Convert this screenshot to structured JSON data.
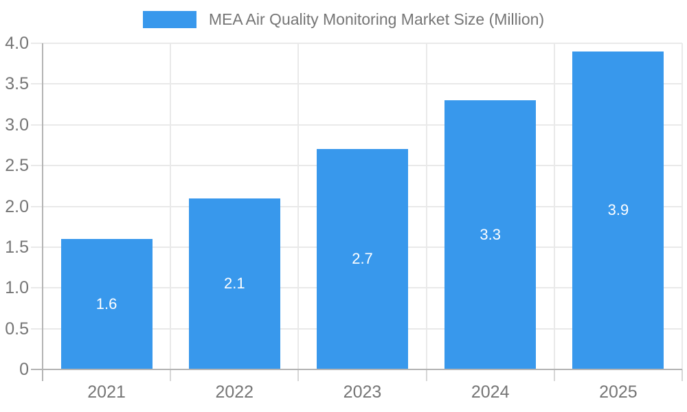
{
  "chart_data": {
    "type": "bar",
    "title": "MEA Air Quality Monitoring Market Size (Million)",
    "categories": [
      "2021",
      "2022",
      "2023",
      "2024",
      "2025"
    ],
    "values": [
      1.6,
      2.1,
      2.7,
      3.3,
      3.9
    ],
    "bar_labels": [
      "1.6",
      "2.1",
      "2.7",
      "3.3",
      "3.9"
    ],
    "xlabel": "",
    "ylabel": "",
    "ylim": [
      0,
      4.0
    ],
    "y_ticks": [
      "0",
      "0.5",
      "1.0",
      "1.5",
      "2.0",
      "2.5",
      "3.0",
      "3.5",
      "4.0"
    ],
    "grid": true,
    "legend_position": "top-center",
    "colors": {
      "bar": "#3898ec",
      "bar_label": "#ffffff",
      "grid": "#e9e9e9",
      "tick": "#d6d6d6",
      "axis": "#b3b3b3",
      "text": "#757575",
      "background": "#ffffff"
    }
  }
}
